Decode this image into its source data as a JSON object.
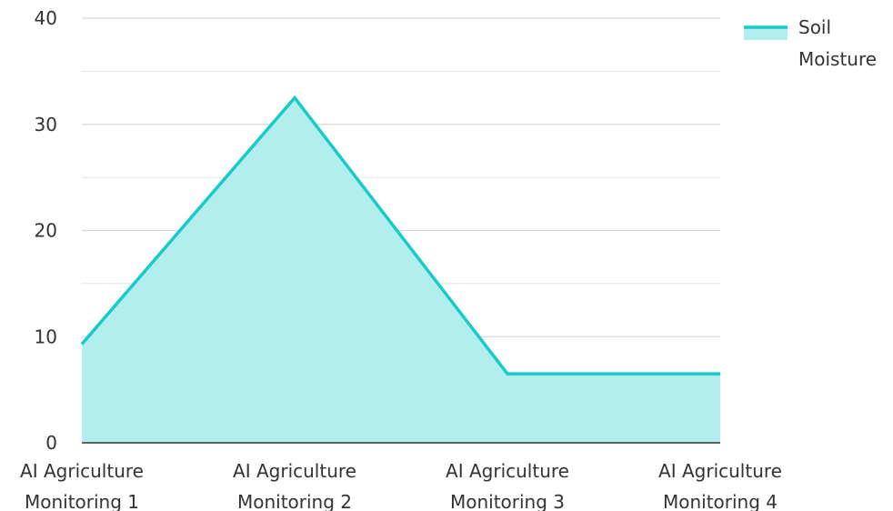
{
  "chart_data": {
    "type": "area",
    "categories": [
      [
        "AI Agriculture",
        "Monitoring 1"
      ],
      [
        "AI Agriculture",
        "Monitoring 2"
      ],
      [
        "AI Agriculture",
        "Monitoring 3"
      ],
      [
        "AI Agriculture",
        "Monitoring 4"
      ]
    ],
    "series": [
      {
        "name": "Soil Moisture",
        "values": [
          9.3,
          32.5,
          6.5,
          6.5
        ]
      }
    ],
    "y_ticks": [
      "0",
      "10",
      "20",
      "30",
      "40"
    ],
    "ylim": [
      0,
      40
    ],
    "minor_grid_step": 5,
    "grid": true,
    "legend_position": "top-right",
    "legend": {
      "lines": [
        "Soil",
        "Moisture"
      ]
    },
    "colors": {
      "line": "#17cbc7",
      "fill": "#b2eeed",
      "grid": "#d9d9d9",
      "axis": "#333333",
      "text": "#333333"
    }
  }
}
